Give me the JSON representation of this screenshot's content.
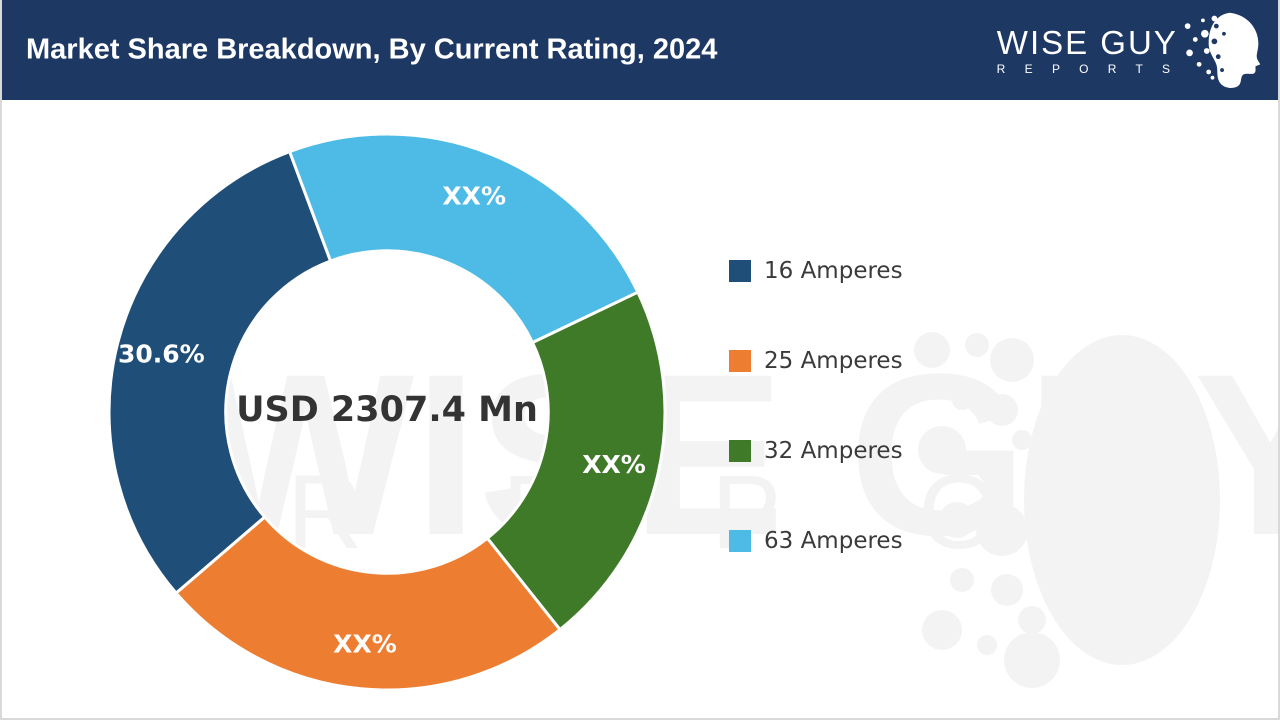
{
  "header": {
    "title": "Market Share Breakdown, By Current Rating, 2024",
    "logo": {
      "line1": "WISE GUY",
      "line2": "R E P O R T S"
    }
  },
  "watermark": {
    "line1": "WISE GUY",
    "line2": "R E P O R T S"
  },
  "chart_data": {
    "type": "pie",
    "subtype": "donut",
    "title": "Market Share Breakdown, By Current Rating, 2024",
    "center_label": "USD 2307.4 Mn",
    "start_angle_deg": 110.5,
    "direction": "counterclockwise",
    "inner_radius_ratio": 0.58,
    "legend_position": "right",
    "series": [
      {
        "name": "16 Amperes",
        "value": 30.6,
        "label": "30.6%",
        "color": "#1f4e79"
      },
      {
        "name": "25 Amperes",
        "value": 24.4,
        "label": "XX%",
        "color": "#ed7d31"
      },
      {
        "name": "32 Amperes",
        "value": 21.4,
        "label": "XX%",
        "color": "#3f7a28"
      },
      {
        "name": "63 Amperes",
        "value": 23.6,
        "label": "XX%",
        "color": "#4dbbe6"
      }
    ]
  },
  "colors": {
    "header_bg": "#1e3864",
    "header_text": "#ffffff",
    "center_text": "#333333",
    "legend_text": "#3a3a3a",
    "segment_label_text": "#ffffff",
    "watermark": "#f3f3f3",
    "border": "#d9d9d9"
  }
}
